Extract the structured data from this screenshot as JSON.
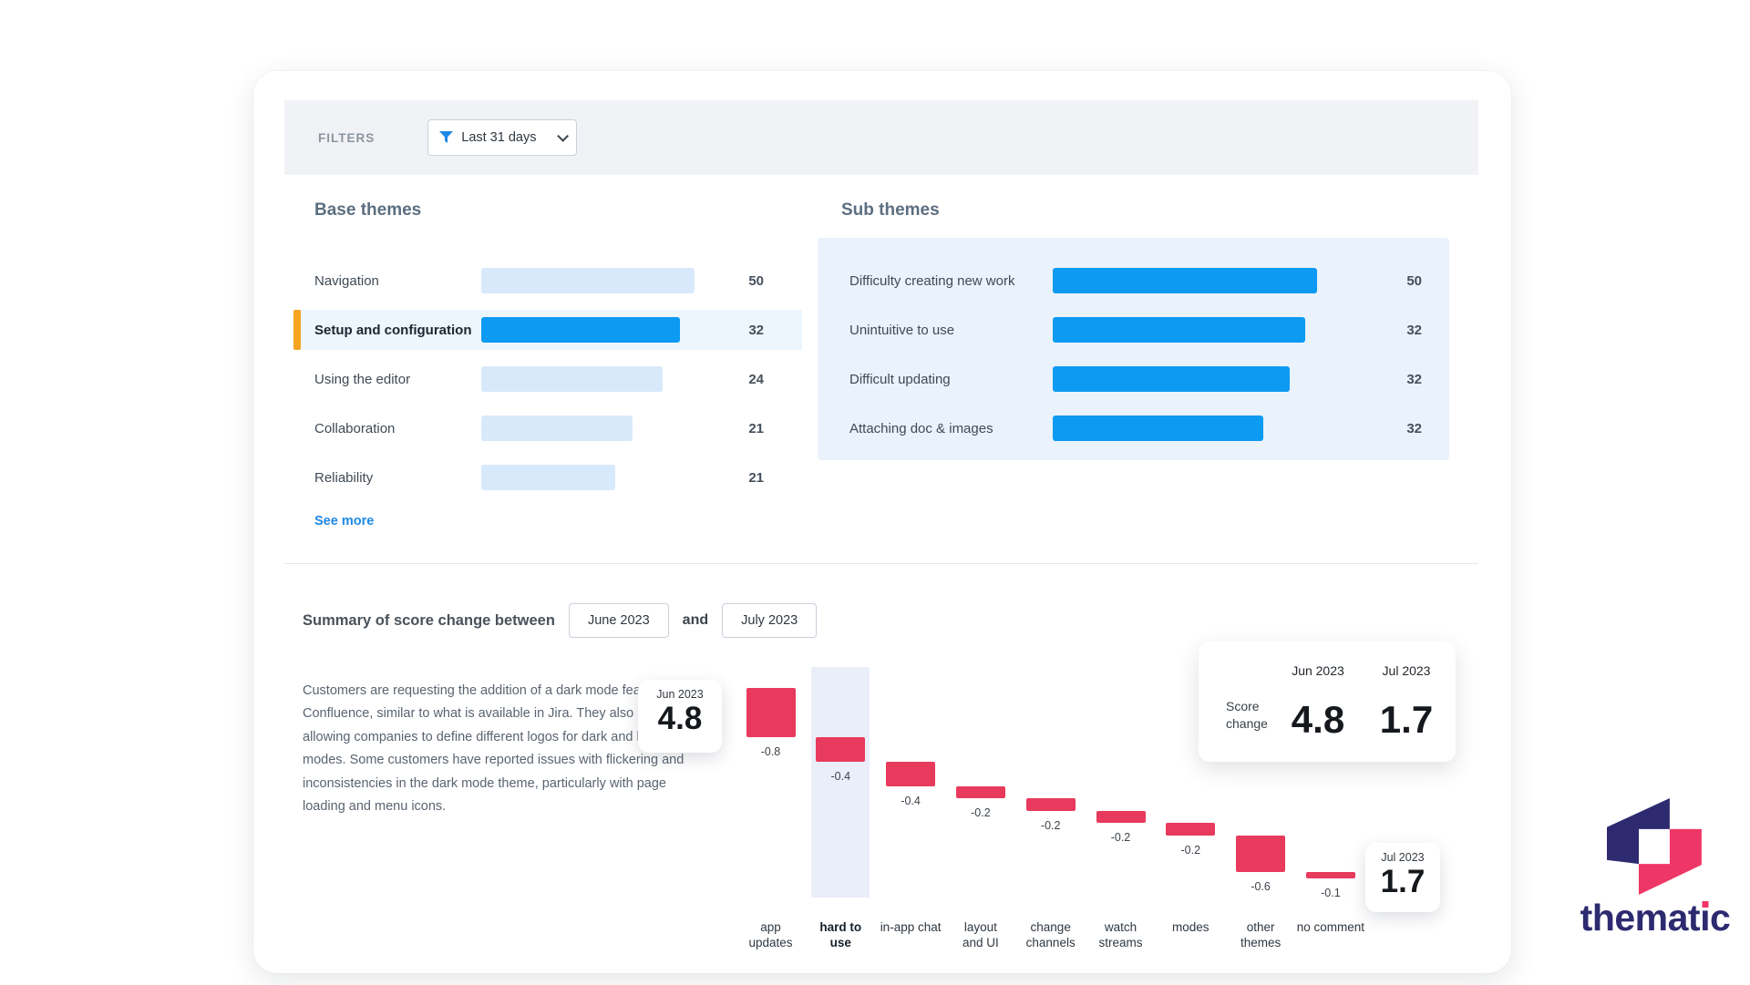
{
  "filters": {
    "label": "FILTERS",
    "dropdown_value": "Last 31 days"
  },
  "summary": {
    "prefix": "Summary of score change between",
    "period_start": "June 2023",
    "conjunction": "and",
    "period_end": "July 2023",
    "narrative": "Customers are requesting the addition of a dark mode feature in Confluence, similar to what is available in Jira. They also suggest allowing companies to define different logos for dark and light modes. Some customers have reported issues with flickering and inconsistencies in the dark mode theme, particularly with page loading and menu icons."
  },
  "see_more_label": "See more",
  "score_card": {
    "row_label": "Score change",
    "col1_label": "Jun 2023",
    "col1_value": "4.8",
    "col2_label": "Jul 2023",
    "col2_value": "1.7"
  },
  "logo": {
    "wordmark": "thematic",
    "navy": "#2d2a70",
    "pink": "#ee3766"
  },
  "colors": {
    "bright_blue": "#0d9af2",
    "light_blue_bar": "#d8e9fc",
    "selected_row_bg": "#edf5fd",
    "selected_accent_orange": "#f5a41f",
    "sub_panel_bg": "#eaf2fb",
    "link_blue": "#1e88e5",
    "waterfall_red": "#e83a5c",
    "highlight_band": "#e9eef9",
    "filters_bar_bg": "#f0f2f5"
  },
  "chart_data": [
    {
      "id": "base_themes",
      "type": "bar",
      "orientation": "horizontal",
      "title": "Base themes",
      "categories": [
        "Navigation",
        "Setup and configuration",
        "Using the editor",
        "Collaboration",
        "Reliability"
      ],
      "values": [
        50,
        32,
        24,
        21,
        21
      ],
      "bar_width_pct": [
        100,
        93,
        85,
        71,
        63
      ],
      "selected_category": "Setup and configuration",
      "bar_color": "#d8e9fc",
      "selected_bar_color": "#0d9af2"
    },
    {
      "id": "sub_themes",
      "type": "bar",
      "orientation": "horizontal",
      "title": "Sub themes",
      "categories": [
        "Difficulty creating new work",
        "Unintuitive to use",
        "Difficult updating",
        "Attaching doc & images"
      ],
      "values": [
        50,
        32,
        32,
        32
      ],
      "bar_width_pct": [
        100,
        95.6,
        89.6,
        79.6
      ],
      "bar_color": "#0d9af2"
    },
    {
      "id": "score_waterfall",
      "type": "waterfall",
      "start_label": "Jun 2023",
      "start_value": 4.8,
      "end_label": "Jul 2023",
      "end_value": 1.7,
      "categories": [
        "app updates",
        "hard to use",
        "in-app chat",
        "layout and UI",
        "change channels",
        "watch streams",
        "modes",
        "other themes",
        "no comment"
      ],
      "values": [
        -0.8,
        -0.4,
        -0.4,
        -0.2,
        -0.2,
        -0.2,
        -0.2,
        -0.6,
        -0.1
      ],
      "value_labels": [
        "-0.8",
        "-0.4",
        "-0.4",
        "-0.2",
        "-0.2",
        "-0.2",
        "-0.2",
        "-0.6",
        "-0.1"
      ],
      "category_lines": [
        [
          "app",
          "updates"
        ],
        [
          "hard to",
          "use"
        ],
        [
          "in-app chat"
        ],
        [
          "layout",
          "and UI"
        ],
        [
          "change",
          "channels"
        ],
        [
          "watch",
          "streams"
        ],
        [
          "modes"
        ],
        [
          "other",
          "themes"
        ],
        [
          "no comment"
        ]
      ],
      "highlighted_category": "hard to use",
      "bar_color": "#e83a5c",
      "highlight_band_color": "#e9eef9",
      "ylim": [
        1.5,
        4.9
      ]
    }
  ]
}
